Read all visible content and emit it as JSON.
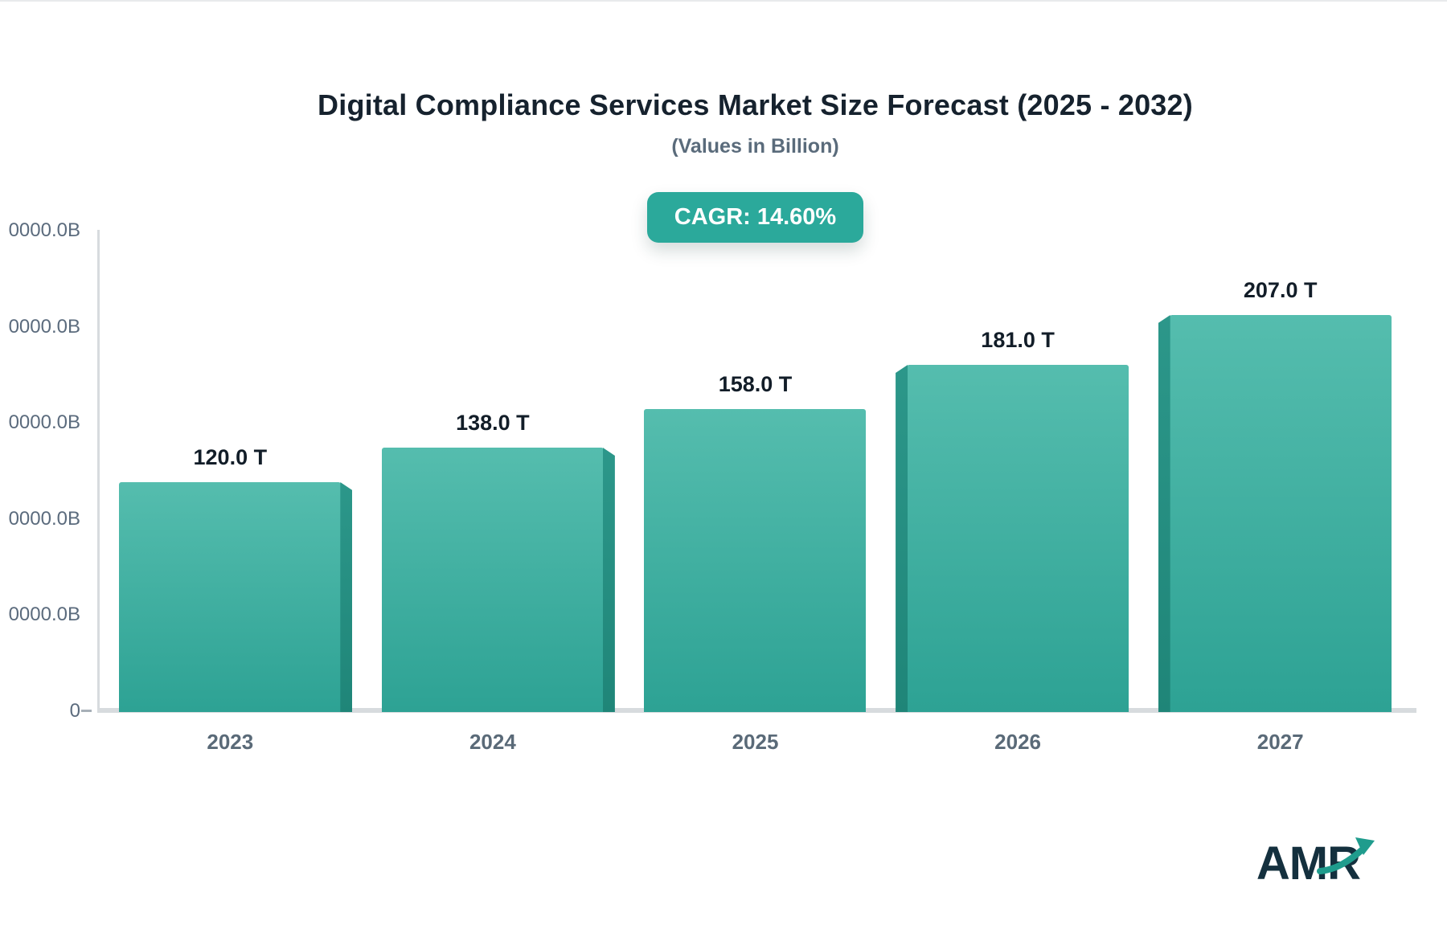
{
  "header": {
    "title": "Digital Compliance Services Market Size Forecast (2025 - 2032)",
    "subtitle": "(Values in Billion)",
    "cagr_label": "CAGR: 14.60%"
  },
  "chart_data": {
    "type": "bar",
    "title": "Digital Compliance Services Market Size Forecast (2025 - 2032)",
    "subtitle": "(Values in Billion)",
    "categories": [
      "2023",
      "2024",
      "2025",
      "2026",
      "2027"
    ],
    "values": [
      120.0,
      138.0,
      158.0,
      181.0,
      207.0
    ],
    "value_labels": [
      "120.0 T",
      "138.0 T",
      "158.0 T",
      "181.0 T",
      "207.0 T"
    ],
    "sides": [
      "right",
      "right",
      "none",
      "left",
      "left"
    ],
    "y_axis_tick_labels": [
      "0",
      "0000.0B",
      "0000.0B",
      "0000.0B",
      "0000.0B",
      "0000.0B"
    ],
    "xlabel": "",
    "ylabel": "",
    "grid": false,
    "legend": false,
    "cagr": "14.60%",
    "bar_color_top": "#55bdae",
    "bar_color_bottom": "#2da294",
    "bar_side_color": "#1f8578",
    "accent_color": "#2ba99b"
  },
  "branding": {
    "logo_text": "AMR"
  }
}
